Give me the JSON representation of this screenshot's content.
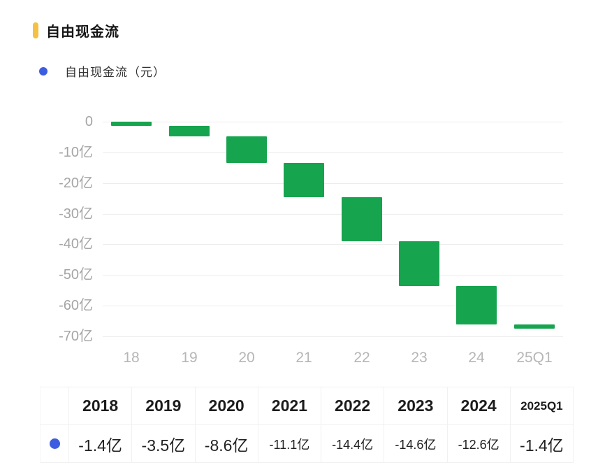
{
  "header": {
    "title": "自由现金流",
    "marker_color": "#f4c142"
  },
  "legend": {
    "label": "自由现金流（元）",
    "dot_color": "#3d5de0"
  },
  "chart_data": {
    "type": "bar",
    "subtype": "waterfall",
    "title": "自由现金流",
    "series_name": "自由现金流（元）",
    "unit": "亿",
    "categories": [
      "18",
      "19",
      "20",
      "21",
      "22",
      "23",
      "24",
      "25Q1"
    ],
    "values": [
      -1.4,
      -3.5,
      -8.6,
      -11.1,
      -14.4,
      -14.6,
      -12.6,
      -1.4
    ],
    "cumulative": [
      -1.4,
      -4.9,
      -13.5,
      -24.6,
      -39.0,
      -53.6,
      -66.2,
      -67.6
    ],
    "y_ticks": [
      {
        "value": 0,
        "label": "0"
      },
      {
        "value": -10,
        "label": "-10亿"
      },
      {
        "value": -20,
        "label": "-20亿"
      },
      {
        "value": -30,
        "label": "-30亿"
      },
      {
        "value": -40,
        "label": "-40亿"
      },
      {
        "value": -50,
        "label": "-50亿"
      },
      {
        "value": -60,
        "label": "-60亿"
      },
      {
        "value": -70,
        "label": "-70亿"
      }
    ],
    "ylim": [
      -73,
      5
    ],
    "grid": true,
    "legend_position": "top-left",
    "bar_color": "#17a44f"
  },
  "table": {
    "columns": [
      "2018",
      "2019",
      "2020",
      "2021",
      "2022",
      "2023",
      "2024",
      "2025Q1"
    ],
    "rows": [
      {
        "indicator_color": "#3d5de0",
        "values": [
          "-1.4亿",
          "-3.5亿",
          "-8.6亿",
          "-11.1亿",
          "-14.4亿",
          "-14.6亿",
          "-12.6亿",
          "-1.4亿"
        ]
      }
    ]
  }
}
